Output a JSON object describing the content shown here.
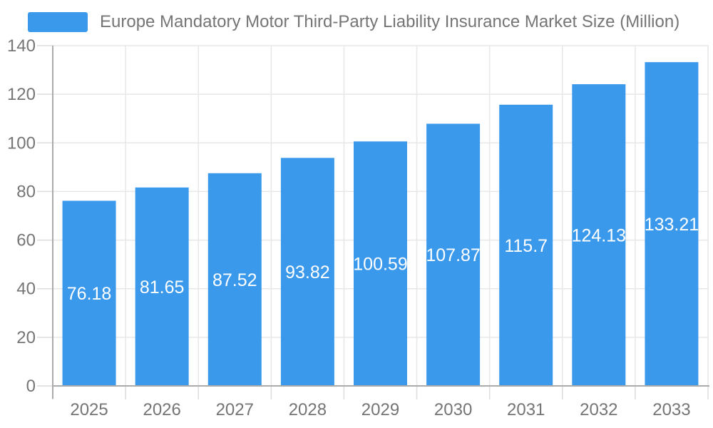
{
  "chart_data": {
    "type": "bar",
    "categories": [
      "2025",
      "2026",
      "2027",
      "2028",
      "2029",
      "2030",
      "2031",
      "2032",
      "2033"
    ],
    "series": [
      {
        "name": "Europe Mandatory Motor Third-Party Liability Insurance Market Size (Million)",
        "values": [
          76.18,
          81.65,
          87.52,
          93.82,
          100.59,
          107.87,
          115.7,
          124.13,
          133.21
        ]
      }
    ],
    "value_labels": [
      "76.18",
      "81.65",
      "87.52",
      "93.82",
      "100.59",
      "107.87",
      "115.7",
      "124.13",
      "133.21"
    ],
    "title": "",
    "xlabel": "",
    "ylabel": "",
    "ylim": [
      0,
      140
    ],
    "yticks": [
      0,
      20,
      40,
      60,
      80,
      100,
      120,
      140
    ],
    "grid": true,
    "legend_position": "top-left",
    "bar_label_position": "inside-center"
  },
  "colors": {
    "bar": "#3b99ec",
    "value_label": "#ffffff",
    "axis_label": "#757575",
    "legend_text": "#757575",
    "axis_line": "#ababab",
    "gridline": "#e7e7e7",
    "tick": "#dcdcdc",
    "background": "#ffffff"
  }
}
